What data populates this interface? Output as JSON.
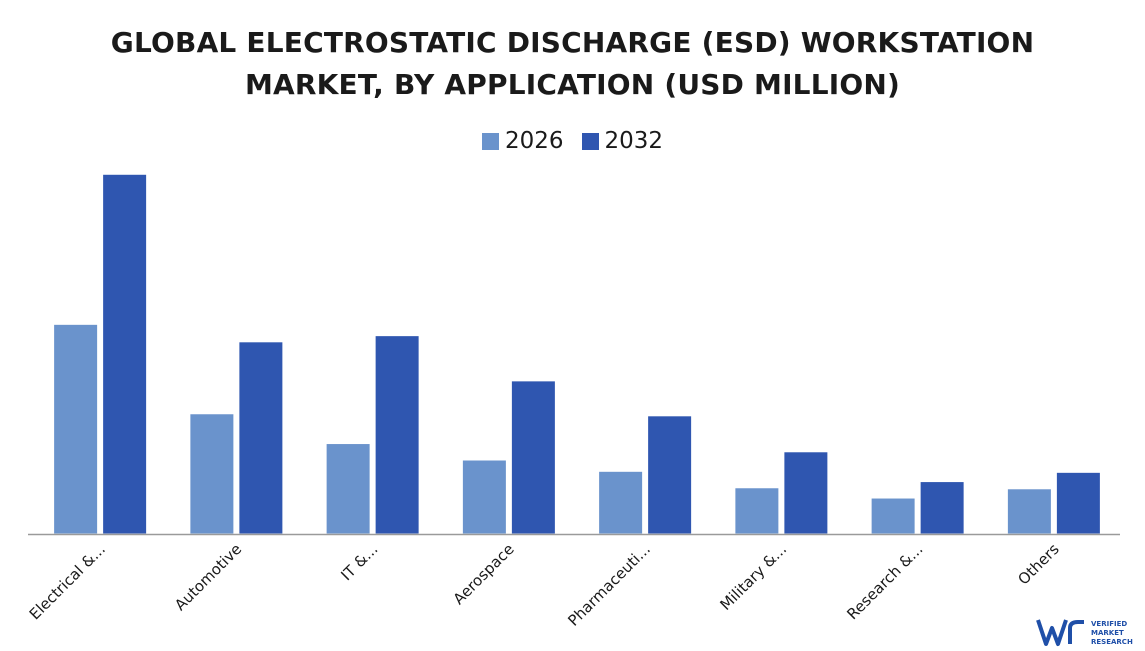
{
  "title_lines": [
    "GLOBAL ELECTROSTATIC DISCHARGE (ESD) WORKSTATION",
    "MARKET, BY APPLICATION (USD MILLION)"
  ],
  "logo": {
    "icon": "vmr-logo-icon",
    "lines": [
      "VERIFIED",
      "MARKET",
      "RESEARCH"
    ]
  },
  "chart_data": {
    "type": "bar",
    "title": "GLOBAL ELECTROSTATIC DISCHARGE (ESD) WORKSTATION MARKET, BY APPLICATION (USD MILLION)",
    "categories": [
      "Electrical &...",
      "Automotive",
      "IT &...",
      "Aerospace",
      "Pharmaceuti...",
      "Military &...",
      "Research &...",
      "Others"
    ],
    "series": [
      {
        "name": "2026",
        "color": "#6a93cc",
        "values": [
          204,
          117,
          88,
          72,
          61,
          45,
          35,
          44
        ]
      },
      {
        "name": "2032",
        "color": "#2f56b0",
        "values": [
          350,
          187,
          193,
          149,
          115,
          80,
          51,
          60
        ]
      }
    ],
    "ylim": [
      0,
      360
    ],
    "xlabel": "",
    "ylabel": "",
    "grid": false,
    "legend": "top-center"
  }
}
